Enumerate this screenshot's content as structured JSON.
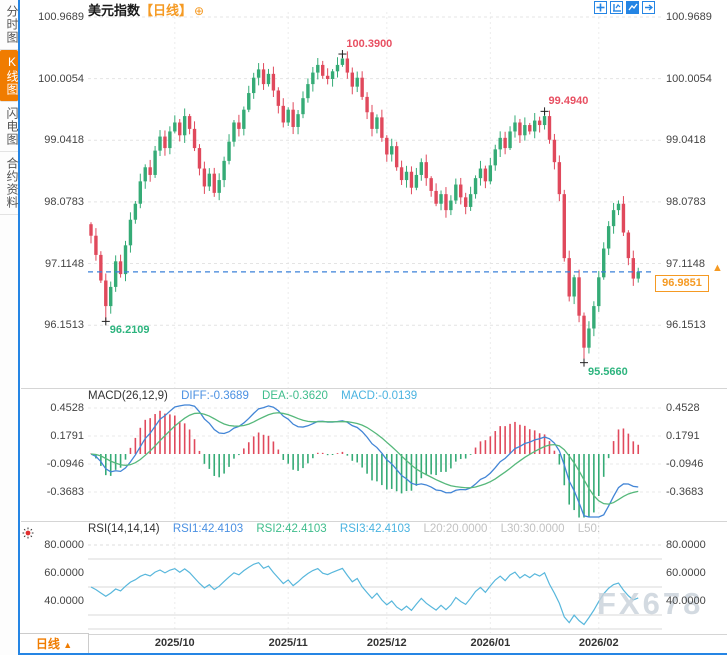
{
  "header": {
    "title": "美元指数",
    "period_tag": "【日线】",
    "add_icon": "⊕"
  },
  "sidebar": {
    "items": [
      {
        "label": "分时图",
        "active": false
      },
      {
        "label": "K线图",
        "active": true
      },
      {
        "label": "闪电图",
        "active": false
      },
      {
        "label": "合约资料",
        "active": false
      }
    ]
  },
  "colors": {
    "up": "#35ab76",
    "down": "#e0495c",
    "up_text": "#2db47e",
    "down_text": "#e85062",
    "accent_orange": "#f59a23",
    "frame_blue": "#2585e4",
    "diff_line": "#4285d6",
    "dea_line": "#56b87b",
    "rsi_line": "#58b7dc",
    "price_line": "#3b82d9"
  },
  "bottom_bar": {
    "period": "日线",
    "arrow": "▲"
  },
  "watermark": "FX678",
  "price_marker": {
    "value": "96.9851",
    "numeric": 96.9851
  },
  "macd_panel": {
    "title": "MACD(26,12,9)",
    "diff_label": "DIFF:-0.3689",
    "dea_label": "DEA:-0.3620",
    "macd_label": "MACD:-0.0139",
    "axis_labels": [
      "0.4528",
      "0.1791",
      "-0.0946",
      "-0.3683"
    ]
  },
  "rsi_panel": {
    "title": "RSI(14,14,14)",
    "rsi1_label": "RSI1:42.4103",
    "rsi2_label": "RSI2:42.4103",
    "rsi3_label": "RSI3:42.4103",
    "l20_label": "L20:20.0000",
    "l30_label": "L30:30.0000",
    "l50_label": "L50:",
    "axis_labels": [
      "80.0000",
      "60.0000",
      "40.0000"
    ],
    "axis_values": [
      80,
      60,
      40
    ],
    "gridline_values": [
      70,
      50,
      30,
      20
    ]
  },
  "chart_data": {
    "type": "candlestick",
    "title": "美元指数 日线",
    "y_axis_labels": [
      "100.9689",
      "100.0054",
      "99.0418",
      "98.0783",
      "97.1148",
      "96.1513"
    ],
    "y_axis_values": [
      100.9689,
      100.0054,
      99.0418,
      98.0783,
      97.1148,
      96.1513
    ],
    "x_ticks": [
      {
        "label": "2025/10",
        "index": 17
      },
      {
        "label": "2025/11",
        "index": 40
      },
      {
        "label": "2025/12",
        "index": 60
      },
      {
        "label": "2026/01",
        "index": 81
      },
      {
        "label": "2026/02",
        "index": 103
      }
    ],
    "closes": [
      97.55,
      97.25,
      96.85,
      96.45,
      96.75,
      97.15,
      96.95,
      97.4,
      97.8,
      98.05,
      98.4,
      98.62,
      98.5,
      98.88,
      99.1,
      98.92,
      99.18,
      99.32,
      99.12,
      99.42,
      99.22,
      98.92,
      98.6,
      98.32,
      98.52,
      98.22,
      98.42,
      98.72,
      99.02,
      99.32,
      99.22,
      99.52,
      99.78,
      100.02,
      100.15,
      99.92,
      100.08,
      99.82,
      99.58,
      99.32,
      99.52,
      99.25,
      99.45,
      99.7,
      99.92,
      100.1,
      100.22,
      100.05,
      100.0,
      100.12,
      100.22,
      100.32,
      100.1,
      99.88,
      100.02,
      99.72,
      99.48,
      99.22,
      99.4,
      99.08,
      98.82,
      98.95,
      98.62,
      98.42,
      98.55,
      98.3,
      98.5,
      98.7,
      98.45,
      98.25,
      98.05,
      98.2,
      97.95,
      98.1,
      98.35,
      98.15,
      98.0,
      98.2,
      98.45,
      98.6,
      98.4,
      98.65,
      98.9,
      99.08,
      98.92,
      99.18,
      99.32,
      99.12,
      99.28,
      99.18,
      99.35,
      99.28,
      99.42,
      99.05,
      98.7,
      98.2,
      97.2,
      96.6,
      96.9,
      96.3,
      95.8,
      96.1,
      96.45,
      96.9,
      97.35,
      97.7,
      97.95,
      98.05,
      97.6,
      97.2,
      96.88,
      96.9851
    ],
    "last_price": 96.9851,
    "extremes": [
      {
        "index": 51,
        "kind": "high",
        "value": 100.39,
        "text": "100.3900",
        "color": "down_text"
      },
      {
        "index": 92,
        "kind": "high",
        "value": 99.494,
        "text": "99.4940",
        "color": "down_text"
      },
      {
        "index": 3,
        "kind": "low",
        "value": 96.2109,
        "text": "96.2109",
        "color": "up_text"
      },
      {
        "index": 100,
        "kind": "low",
        "value": 95.566,
        "text": "95.5660",
        "color": "up_text"
      }
    ],
    "indicators": {
      "macd": {
        "params": [
          26,
          12,
          9
        ],
        "diff": -0.3689,
        "dea": -0.362,
        "macd": -0.0139,
        "axis_values": [
          0.4528,
          0.1791,
          -0.0946,
          -0.3683
        ]
      },
      "rsi": {
        "params": [
          14,
          14,
          14
        ],
        "rsi1": 42.4103,
        "rsi2": 42.4103,
        "rsi3": 42.4103,
        "l20": 20.0,
        "l30": 30.0
      }
    }
  }
}
